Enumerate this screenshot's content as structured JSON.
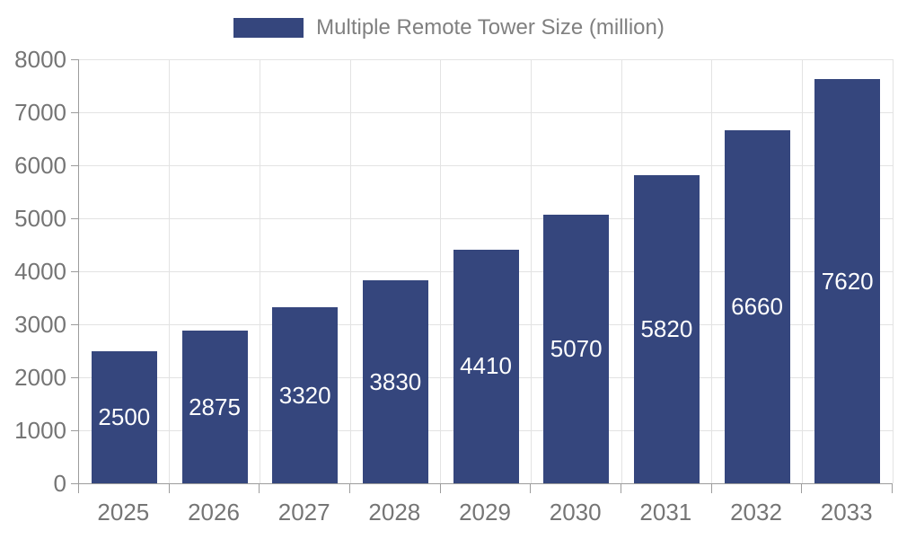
{
  "legend": {
    "label": "Multiple Remote Tower Size (million)"
  },
  "colors": {
    "bar": "#35467D",
    "grid": "#e3e3e3",
    "axis_line": "#9c9c9c",
    "axis_label": "#757575",
    "legend_text": "#808080",
    "value_label": "#ffffff",
    "background": "#ffffff"
  },
  "chart_data": {
    "type": "bar",
    "title": "Multiple Remote Tower Size (million)",
    "series_name": "Multiple Remote Tower Size (million)",
    "categories": [
      "2025",
      "2026",
      "2027",
      "2028",
      "2029",
      "2030",
      "2031",
      "2032",
      "2033"
    ],
    "values": [
      2500,
      2875,
      3320,
      3830,
      4410,
      5070,
      5820,
      6660,
      7620
    ],
    "xlabel": "",
    "ylabel": "",
    "ylim": [
      0,
      8000
    ],
    "y_ticks": [
      0,
      1000,
      2000,
      3000,
      4000,
      5000,
      6000,
      7000,
      8000
    ],
    "grid": true,
    "grid_vertical": true,
    "value_labels": "inside-center",
    "legend_position": "top-center"
  }
}
